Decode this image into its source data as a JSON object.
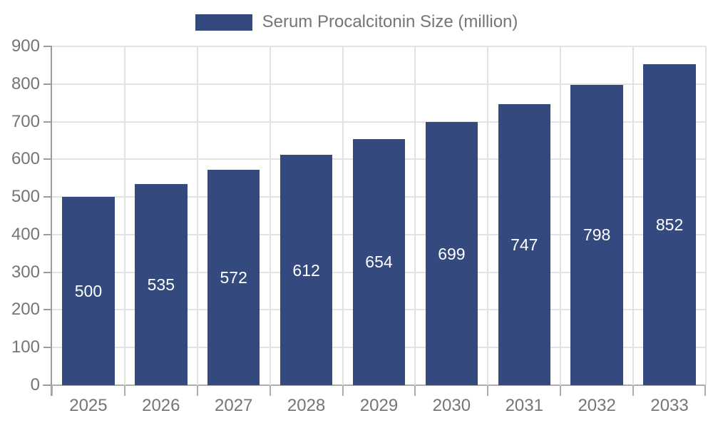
{
  "chart_data": {
    "type": "bar",
    "title": "Serum Procalcitonin Size (million)",
    "categories": [
      "2025",
      "2026",
      "2027",
      "2028",
      "2029",
      "2030",
      "2031",
      "2032",
      "2033"
    ],
    "values": [
      500,
      535,
      572,
      612,
      654,
      699,
      747,
      798,
      852
    ],
    "xlabel": "",
    "ylabel": "",
    "ylim": [
      0,
      900
    ],
    "yticks": [
      0,
      100,
      200,
      300,
      400,
      500,
      600,
      700,
      800,
      900
    ],
    "grid": true,
    "legend_position": "top-center",
    "colors": {
      "bar": "#344a7f",
      "bar_value_text": "#ffffff",
      "axis_text": "#757575",
      "gridline": "#e3e3e3",
      "axis_line": "#9c9c9c"
    }
  }
}
